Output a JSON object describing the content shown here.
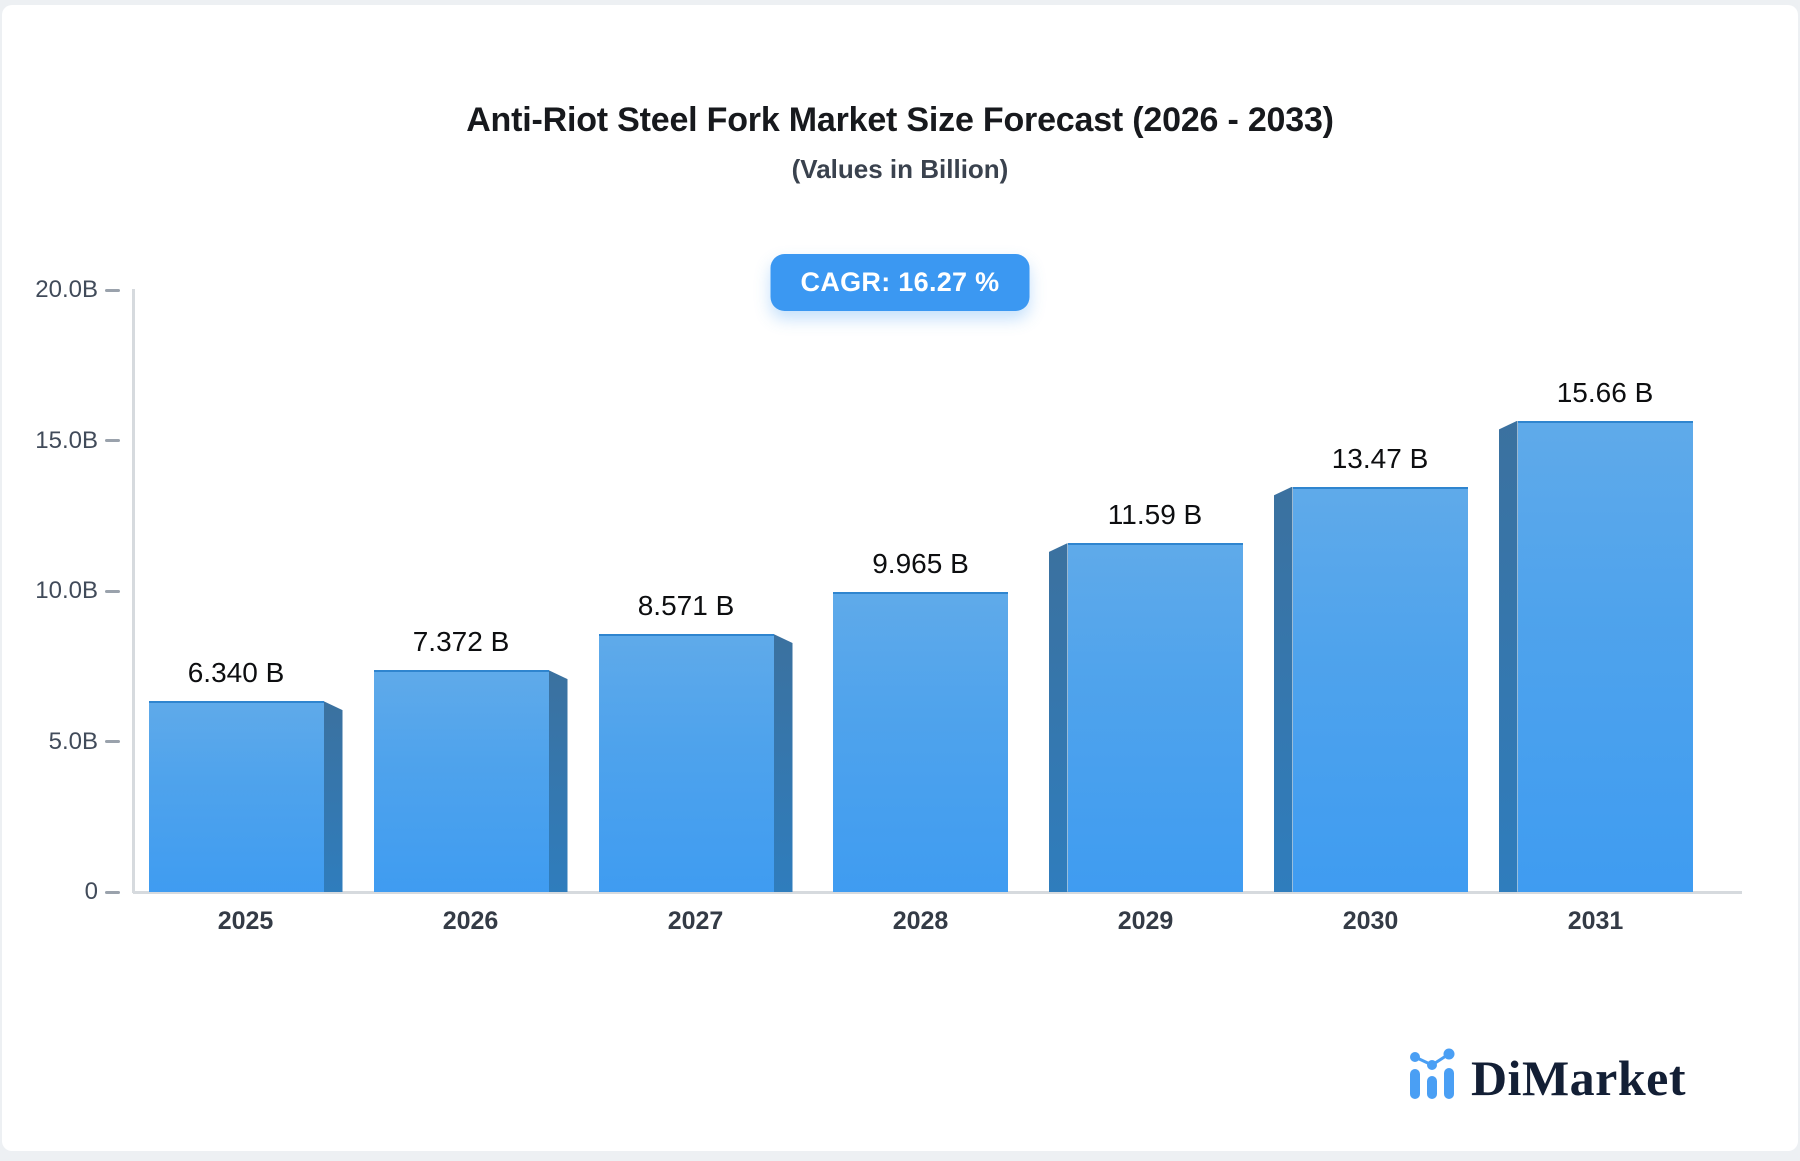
{
  "header": {
    "title": "Anti-Riot Steel Fork Market Size Forecast (2026 - 2033)",
    "subtitle": "(Values in Billion)"
  },
  "badge": {
    "label": "CAGR: 16.27 %"
  },
  "chart_data": {
    "type": "bar",
    "title": "Anti-Riot Steel Fork Market Size Forecast (2026 - 2033)",
    "subtitle": "(Values in Billion)",
    "categories": [
      "2025",
      "2026",
      "2027",
      "2028",
      "2029",
      "2030",
      "2031"
    ],
    "values": [
      6.34,
      7.372,
      8.571,
      9.965,
      11.59,
      13.47,
      15.66
    ],
    "value_labels": [
      "6.340 B",
      "7.372 B",
      "8.571 B",
      "9.965 B",
      "11.59 B",
      "13.47 B",
      "15.66 B"
    ],
    "xlabel": "",
    "ylabel": "",
    "ylim": [
      0,
      20
    ],
    "yticks": [
      {
        "value": 20,
        "label": "20.0B"
      },
      {
        "value": 15,
        "label": "15.0B"
      },
      {
        "value": 10,
        "label": "10.0B"
      },
      {
        "value": 5,
        "label": "5.0B"
      },
      {
        "value": 0,
        "label": "0"
      }
    ],
    "grid": false,
    "legend": false,
    "style": "3d-extruded-bars",
    "colors": {
      "bar_face_top": "#5FAAEA",
      "bar_face_bottom": "#3F9CF1",
      "bar_top_edge": "#2F85CF",
      "bar_side": "#2F77B5",
      "axis_line": "#D6DADE",
      "tick_dash": "#9AA2AC",
      "ytick_text": "#414B5A",
      "xtick_text": "#343B46",
      "value_text": "#0D0E10",
      "badge_bg": "#3B98F2",
      "badge_text": "#FFFFFF"
    }
  },
  "logo": {
    "text": "DiMarket",
    "icon": "bar-chart-logo-icon",
    "text_color": "#131F35",
    "icon_color": "#4A9FF4"
  }
}
